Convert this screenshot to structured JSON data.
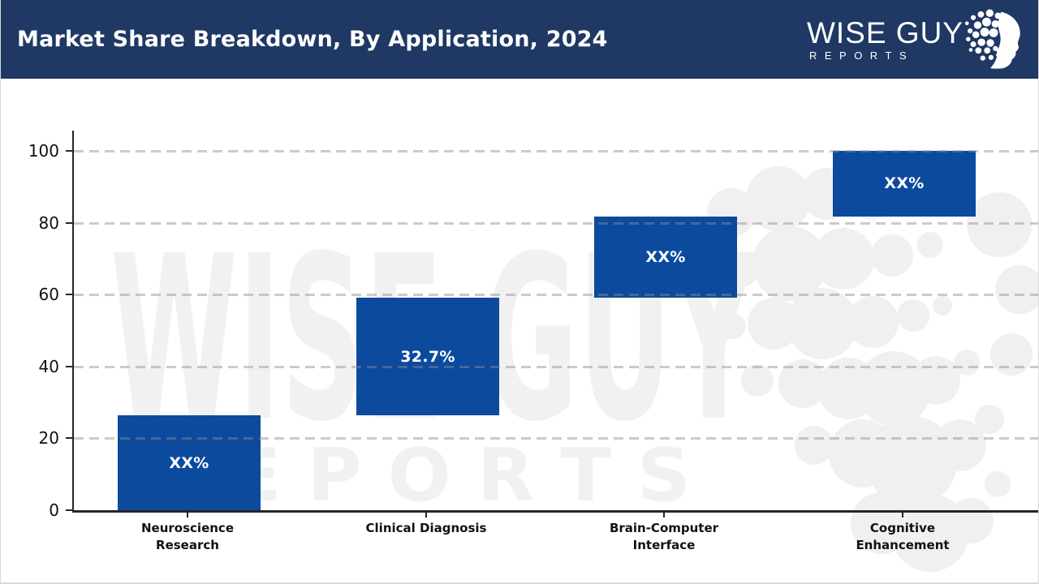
{
  "header": {
    "title": "Market Share Breakdown, By Application, 2024",
    "brand": {
      "name": "WISE GUY",
      "sub": "REPORTS"
    }
  },
  "watermark": {
    "line1": "WISE GUY",
    "line2": "R E P O R T S"
  },
  "chart_data": {
    "type": "bar",
    "subtype": "waterfall",
    "title": "Market Share Breakdown, By Application, 2024",
    "categories": [
      "Neuroscience Research",
      "Clinical Diagnosis",
      "Brain-Computer Interface",
      "Cognitive Enhancement"
    ],
    "category_lines": [
      [
        "Neuroscience",
        "Research"
      ],
      [
        "Clinical Diagnosis"
      ],
      [
        "Brain-Computer",
        "Interface"
      ],
      [
        "Cognitive",
        "Enhancement"
      ]
    ],
    "segments": [
      {
        "category": "Neuroscience Research",
        "start": 0,
        "end": 26.4,
        "label": "XX%"
      },
      {
        "category": "Clinical Diagnosis",
        "start": 26.4,
        "end": 59.1,
        "label": "32.7%",
        "value": 32.7
      },
      {
        "category": "Brain-Computer Interface",
        "start": 59.1,
        "end": 81.8,
        "label": "XX%"
      },
      {
        "category": "Cognitive Enhancement",
        "start": 81.8,
        "end": 100,
        "label": "XX%"
      }
    ],
    "xlabel": "",
    "ylabel": "",
    "ylim": [
      0,
      100
    ],
    "yticks": [
      0,
      20,
      40,
      60,
      80,
      100
    ],
    "grid": "horizontal-dashed",
    "legend": "none",
    "colors": {
      "bar": "#0c4a9e",
      "bar_label": "#ffffff",
      "header_bg": "#1f3864",
      "grid": "#d9d9d9",
      "axis": "#262626",
      "watermark": "#f1f1f1"
    }
  }
}
